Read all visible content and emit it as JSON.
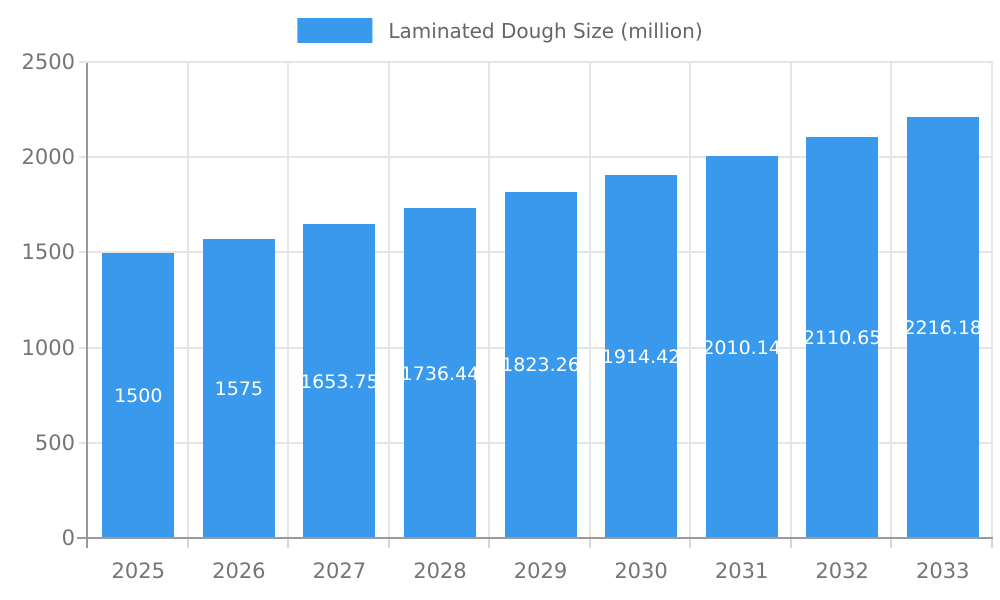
{
  "chart_data": {
    "type": "bar",
    "title": "Laminated Dough Size (million)",
    "categories": [
      "2025",
      "2026",
      "2027",
      "2028",
      "2029",
      "2030",
      "2031",
      "2032",
      "2033"
    ],
    "series": [
      {
        "name": "Laminated Dough Size (million)",
        "values": [
          1500,
          1575,
          1653.75,
          1736.44,
          1823.26,
          1914.42,
          2010.14,
          2110.65,
          2216.18
        ],
        "labels": [
          "1500",
          "1575",
          "1653.75",
          "1736.44",
          "1823.26",
          "1914.42",
          "2010.14",
          "2110.65",
          "2216.18"
        ]
      }
    ],
    "xlabel": "",
    "ylabel": "",
    "ylim": [
      0,
      2500
    ],
    "yticks": [
      0,
      500,
      1000,
      1500,
      2000,
      2500
    ],
    "ytick_labels": [
      "0",
      "500",
      "1000",
      "1500",
      "2000",
      "2500"
    ],
    "grid": true,
    "legend_position": "top",
    "value_label_position": "inside-center",
    "colors": {
      "bar": "#3999ED",
      "value_label": "#ffffff",
      "axis_line": "#9a9a9a",
      "gridline": "#e5e5e5",
      "tick_label": "#757575",
      "legend_text": "#666666",
      "background": "#ffffff"
    }
  }
}
